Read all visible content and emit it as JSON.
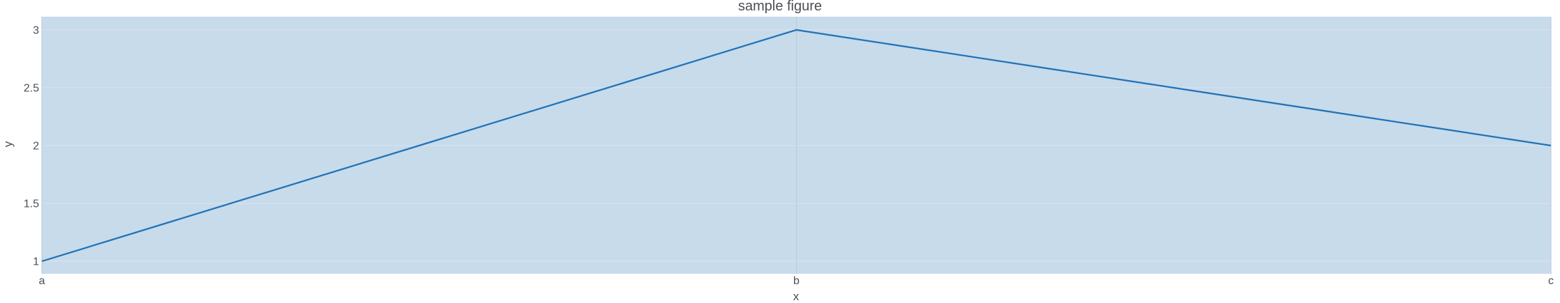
{
  "chart_data": {
    "type": "line",
    "title": "sample figure",
    "xlabel": "x",
    "ylabel": "y",
    "categories": [
      "a",
      "b",
      "c"
    ],
    "values": [
      1,
      3,
      2
    ],
    "yticks": [
      1,
      1.5,
      2,
      2.5,
      3
    ],
    "ytick_labels": [
      "1",
      "1.5",
      "2",
      "2.5",
      "3"
    ],
    "ylim": [
      0.892,
      3.114
    ],
    "grid": true,
    "legend": false
  },
  "colors": {
    "paper_bg": "#ffffff",
    "plot_bg": "#c7dbeb",
    "hgrid": "#d6e4f0",
    "vgrid": "#b9cdde",
    "line": "#2373b6",
    "text": "#4b4f55"
  }
}
